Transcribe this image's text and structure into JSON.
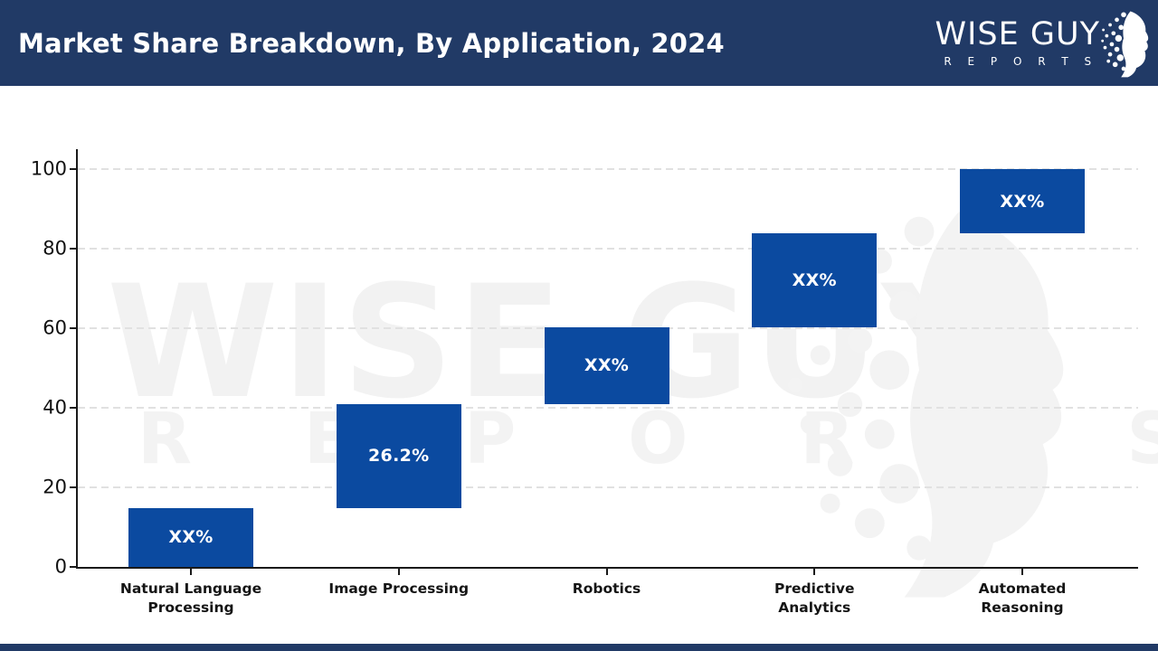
{
  "header": {
    "title": "Market Share Breakdown, By Application, 2024"
  },
  "logo": {
    "line1": "WISE GUY",
    "line2": "R E P O R T S",
    "icon": "dotted-face-icon"
  },
  "watermark": {
    "line1": "WISE GUY",
    "line2": "R E P O R T S",
    "icon": "dotted-face-icon"
  },
  "chart_data": {
    "type": "bar",
    "variant": "waterfall",
    "title": "Market Share Breakdown, By Application, 2024",
    "categories": [
      "Natural Language\nProcessing",
      "Image Processing",
      "Robotics",
      "Predictive\nAnalytics",
      "Automated\nReasoning"
    ],
    "segments": [
      {
        "category": "Natural Language Processing",
        "start": 0,
        "end": 14.8,
        "value": 14.8,
        "label": "XX%"
      },
      {
        "category": "Image Processing",
        "start": 14.8,
        "end": 41.0,
        "value": 26.2,
        "label": "26.2%"
      },
      {
        "category": "Robotics",
        "start": 41.0,
        "end": 60.2,
        "value": 19.2,
        "label": "XX%"
      },
      {
        "category": "Predictive Analytics",
        "start": 60.2,
        "end": 83.8,
        "value": 23.6,
        "label": "XX%"
      },
      {
        "category": "Automated Reasoning",
        "start": 83.8,
        "end": 100,
        "value": 16.2,
        "label": "XX%"
      }
    ],
    "ylim": [
      0,
      100
    ],
    "yticks": [
      0,
      20,
      40,
      60,
      80,
      100
    ],
    "xlabel": "",
    "ylabel": "",
    "grid": {
      "horizontal": true,
      "style": "dashed",
      "color": "#e1e1e1"
    },
    "legend": "none",
    "bar_color": "#0b4aa0",
    "bar_label_color": "#ffffff"
  },
  "colors": {
    "header_bg": "#213a66",
    "footer_bg": "#213a66",
    "chart_bg": "#ffffff",
    "bar": "#0b4aa0",
    "axis": "#1a1a1a",
    "watermark": "#f2f2f2"
  }
}
